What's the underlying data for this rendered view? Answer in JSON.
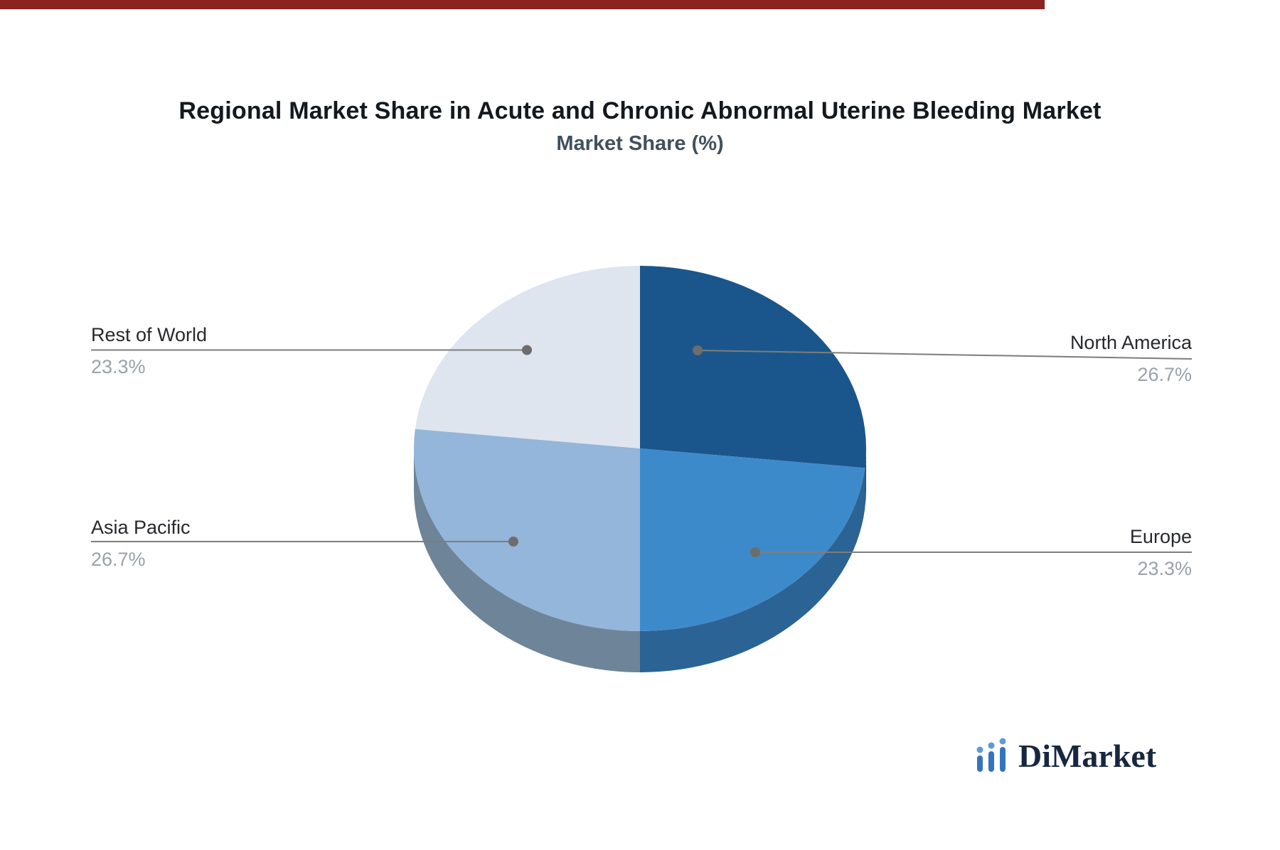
{
  "decor": {
    "top_bar_color": "#8b2320"
  },
  "header": {
    "title": "Regional Market Share in Acute and Chronic Abnormal Uterine Bleeding Market",
    "subtitle": "Market Share (%)"
  },
  "chart_data": {
    "type": "pie",
    "title": "Regional Market Share in Acute and Chronic Abnormal Uterine Bleeding Market",
    "subtitle": "Market Share (%)",
    "units": "%",
    "style": "3d-pie",
    "start_angle_deg": 0,
    "direction": "clockwise",
    "legend_position": "callout-lines",
    "slices": [
      {
        "label": "North America",
        "value": 26.7,
        "color": "#1a568b",
        "depth_color": "#16497a"
      },
      {
        "label": "Europe",
        "value": 23.3,
        "color": "#3d8acb",
        "depth_color": "#2a6394"
      },
      {
        "label": "Asia Pacific",
        "value": 26.7,
        "color": "#93b6da",
        "depth_color": "#6e8498"
      },
      {
        "label": "Rest of World",
        "value": 23.3,
        "color": "#dfe5ef",
        "depth_color": null
      }
    ]
  },
  "callouts": {
    "rest_of_world": {
      "label": "Rest of World",
      "value_text": "23.3%"
    },
    "north_america": {
      "label": "North America",
      "value_text": "26.7%"
    },
    "asia_pacific": {
      "label": "Asia Pacific",
      "value_text": "26.7%"
    },
    "europe": {
      "label": "Europe",
      "value_text": "23.3%"
    }
  },
  "logo": {
    "text": "DiMarket",
    "icon": "bar-chart-icon"
  }
}
